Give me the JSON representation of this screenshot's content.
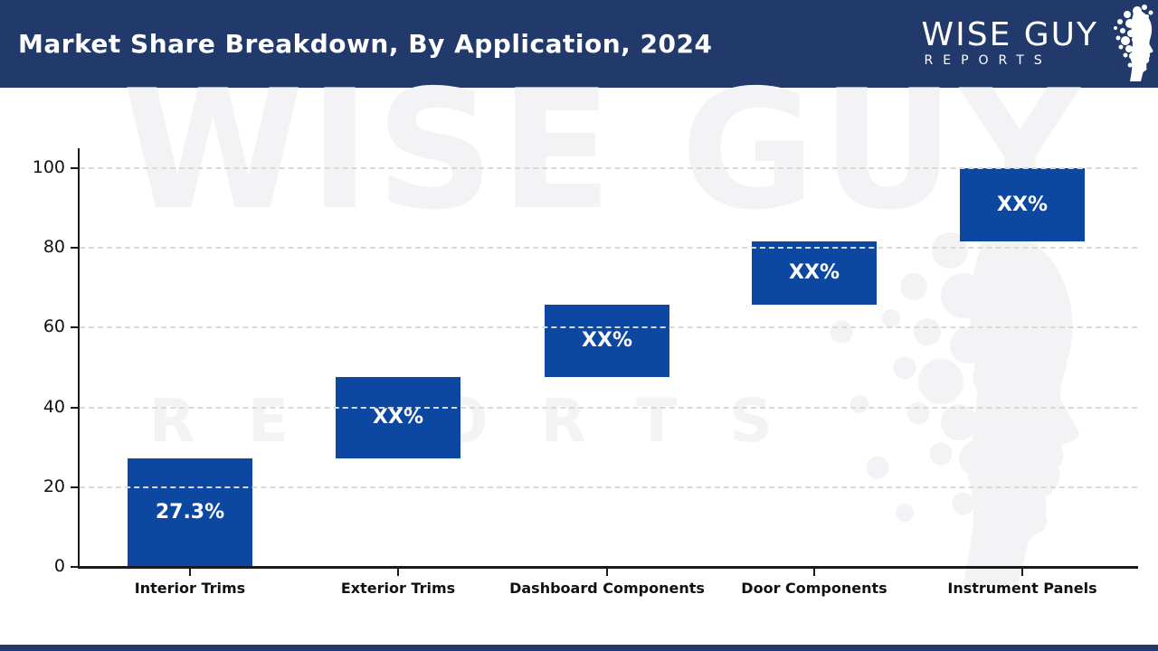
{
  "header": {
    "title": "Market Share Breakdown, By Application, 2024",
    "logo": {
      "line1": "WISE GUY",
      "line2": "REPORTS"
    }
  },
  "watermark": {
    "line1": "WISE GUY",
    "line2": "REPORTS"
  },
  "colors": {
    "header_bg": "#213a6b",
    "footer_bg": "#213a6b",
    "bar": "#0c47a1",
    "bar_label": "#ffffff",
    "grid": "#d9d9d9",
    "axis": "#1a1a1a",
    "watermark": "#f3f3f5"
  },
  "chart_data": {
    "type": "bar",
    "style": "floating-waterfall",
    "title": "Market Share Breakdown, By Application, 2024",
    "categories": [
      "Interior Trims",
      "Exterior Trims",
      "Dashboard Components",
      "Door Components",
      "Instrument Panels"
    ],
    "segments": [
      {
        "category": "Interior Trims",
        "start": 0,
        "end": 27.3,
        "label": "27.3%"
      },
      {
        "category": "Exterior Trims",
        "start": 27.3,
        "end": 47.6,
        "label": "XX%"
      },
      {
        "category": "Dashboard Components",
        "start": 47.6,
        "end": 65.8,
        "label": "XX%"
      },
      {
        "category": "Door Components",
        "start": 65.8,
        "end": 81.6,
        "label": "XX%"
      },
      {
        "category": "Instrument Panels",
        "start": 81.6,
        "end": 100,
        "label": "XX%"
      }
    ],
    "bar_labels": [
      "27.3%",
      "XX%",
      "XX%",
      "XX%",
      "XX%"
    ],
    "yticks": [
      0,
      20,
      40,
      60,
      80,
      100
    ],
    "ylim": [
      0,
      105
    ],
    "xlabel": "",
    "ylabel": "",
    "grid": "horizontal-dashed",
    "legend": "none"
  }
}
